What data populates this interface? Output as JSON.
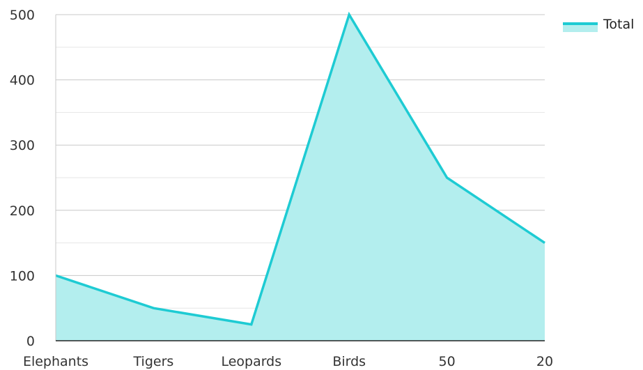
{
  "chart_data": {
    "type": "area",
    "categories": [
      "Elephants",
      "Tigers",
      "Leopards",
      "Birds",
      "50",
      "20"
    ],
    "series": [
      {
        "name": "Total",
        "values": [
          100,
          50,
          25,
          500,
          250,
          150
        ]
      }
    ],
    "ylim": [
      0,
      500
    ],
    "yticks": [
      0,
      100,
      200,
      300,
      400,
      500
    ],
    "grid": true,
    "legend_position": "top-right",
    "colors": {
      "line": "#1ecbd3",
      "fill": "#b3eeee",
      "grid_major": "#c8c8c8",
      "grid_minor": "#e6e6e6",
      "axis": "#222222"
    }
  }
}
